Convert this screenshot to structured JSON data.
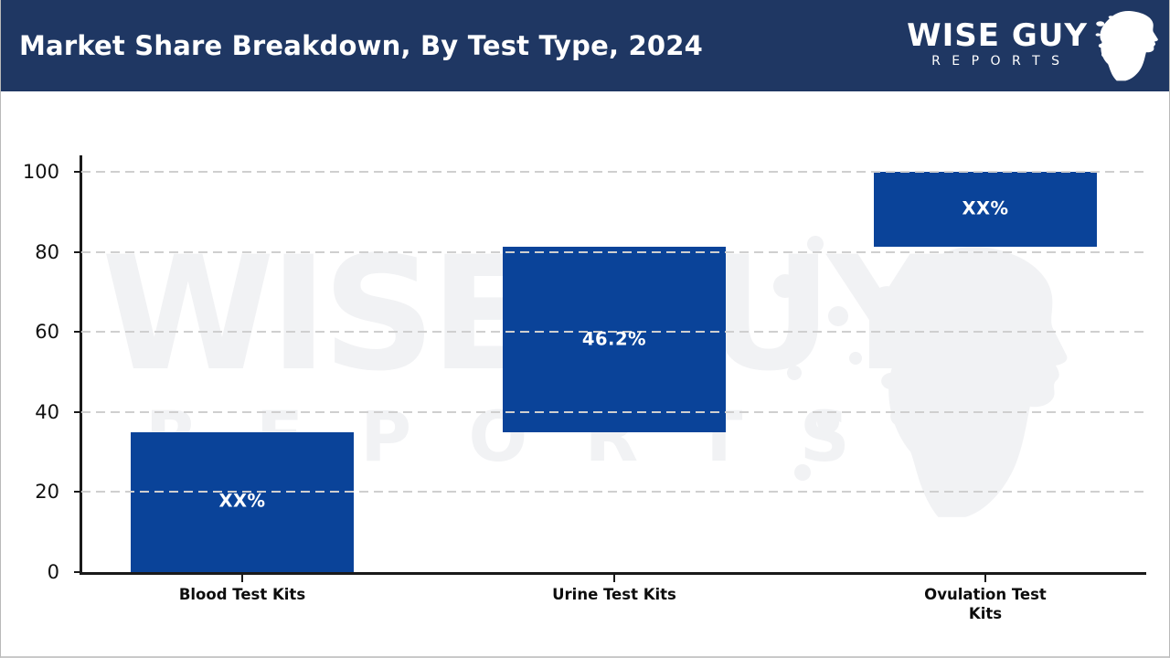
{
  "header": {
    "title": "Market Share Breakdown, By Test Type, 2024",
    "logo": {
      "wordmark": "WISE GUY",
      "subtext": "R E P O R T S"
    }
  },
  "watermark": {
    "line1": "WISE GUY",
    "line2": "R E P O R T S"
  },
  "colors": {
    "header_bg": "#1f3763",
    "bar": "#0a4399",
    "grid": "#cfcfcf",
    "axis": "#1a1a1a",
    "watermark": "#f1f2f4",
    "bar_label": "#ffffff"
  },
  "chart_data": {
    "type": "bar",
    "subtype": "floating-segment-stacked-percent",
    "title": "Market Share Breakdown, By Test Type, 2024",
    "categories": [
      "Blood Test Kits",
      "Urine Test Kits",
      "Ovulation Test Kits"
    ],
    "segments": [
      {
        "category": "Blood Test Kits",
        "from": 0,
        "to": 35,
        "value": 35,
        "label": "XX%"
      },
      {
        "category": "Urine Test Kits",
        "from": 35,
        "to": 81.2,
        "value": 46.2,
        "label": "46.2%"
      },
      {
        "category": "Ovulation Test Kits",
        "from": 81.2,
        "to": 100,
        "value": 18.8,
        "label": "XX%"
      }
    ],
    "xlabel": "",
    "ylabel": "",
    "ylim": [
      0,
      105
    ],
    "yticks": [
      0,
      20,
      40,
      60,
      80,
      100
    ],
    "grid": "horizontal dashed, drawn above bars",
    "legend": "none",
    "bar_color": "#0a4399",
    "label_color": "#ffffff"
  }
}
